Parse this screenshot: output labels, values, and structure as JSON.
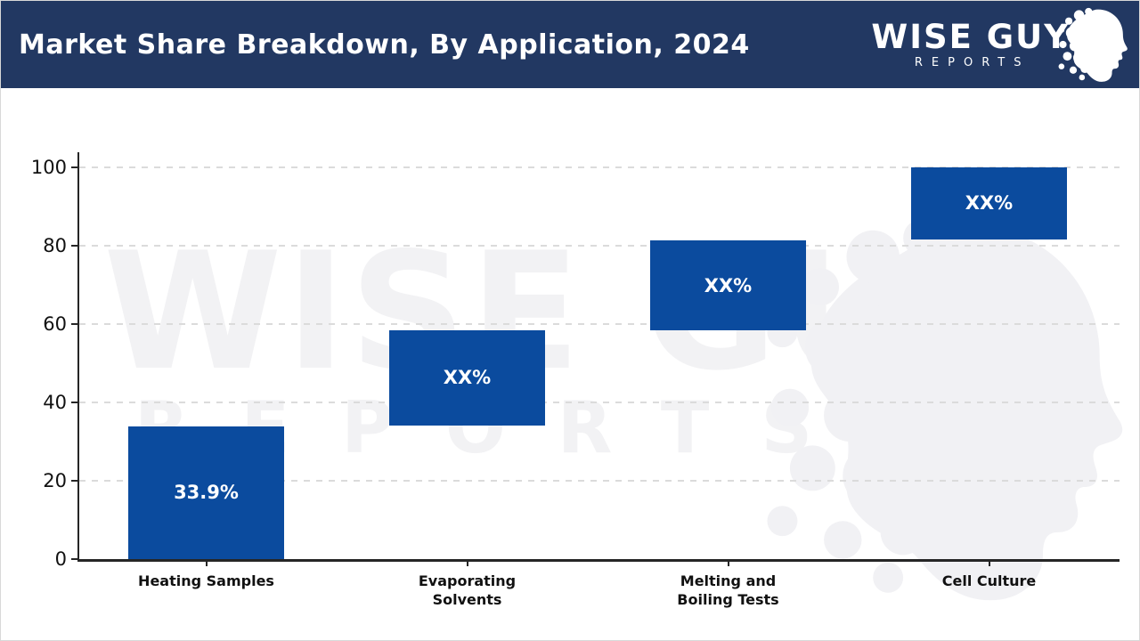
{
  "header": {
    "title": "Market Share Breakdown, By Application, 2024",
    "logo": {
      "name": "WISE GUY",
      "subtitle": "REPORTS"
    }
  },
  "watermark": {
    "line1": "WISE GUY",
    "line2": "REPORTS"
  },
  "chart_data": {
    "type": "bar",
    "subtype": "waterfall",
    "title": "Market Share Breakdown, By Application, 2024",
    "categories": [
      "Heating Samples",
      "Evaporating\nSolvents",
      "Melting and\nBoiling Tests",
      "Cell Culture"
    ],
    "segments": [
      {
        "category": "Heating Samples",
        "start": 0,
        "end": 33.9,
        "label": "33.9%"
      },
      {
        "category": "Evaporating Solvents",
        "start": 34.2,
        "end": 58.3,
        "label": "XX%"
      },
      {
        "category": "Melting and Boiling Tests",
        "start": 58.4,
        "end": 81.3,
        "label": "XX%"
      },
      {
        "category": "Cell Culture",
        "start": 81.7,
        "end": 100,
        "label": "XX%"
      }
    ],
    "yticks": [
      0,
      20,
      40,
      60,
      80,
      100
    ],
    "ylim": [
      0,
      104
    ],
    "xlabel": "",
    "ylabel": "",
    "grid": "horizontal-dashed",
    "legend": "none"
  },
  "colors": {
    "header_bg": "#223862",
    "bar": "#0b4b9e",
    "axis": "#262626",
    "grid_line": "#dbdbdb",
    "watermark": "#f2f2f4",
    "border": "#d8d8d8",
    "bar_label_text": "#ffffff",
    "tick_text": "#111111",
    "title_text": "#ffffff"
  }
}
